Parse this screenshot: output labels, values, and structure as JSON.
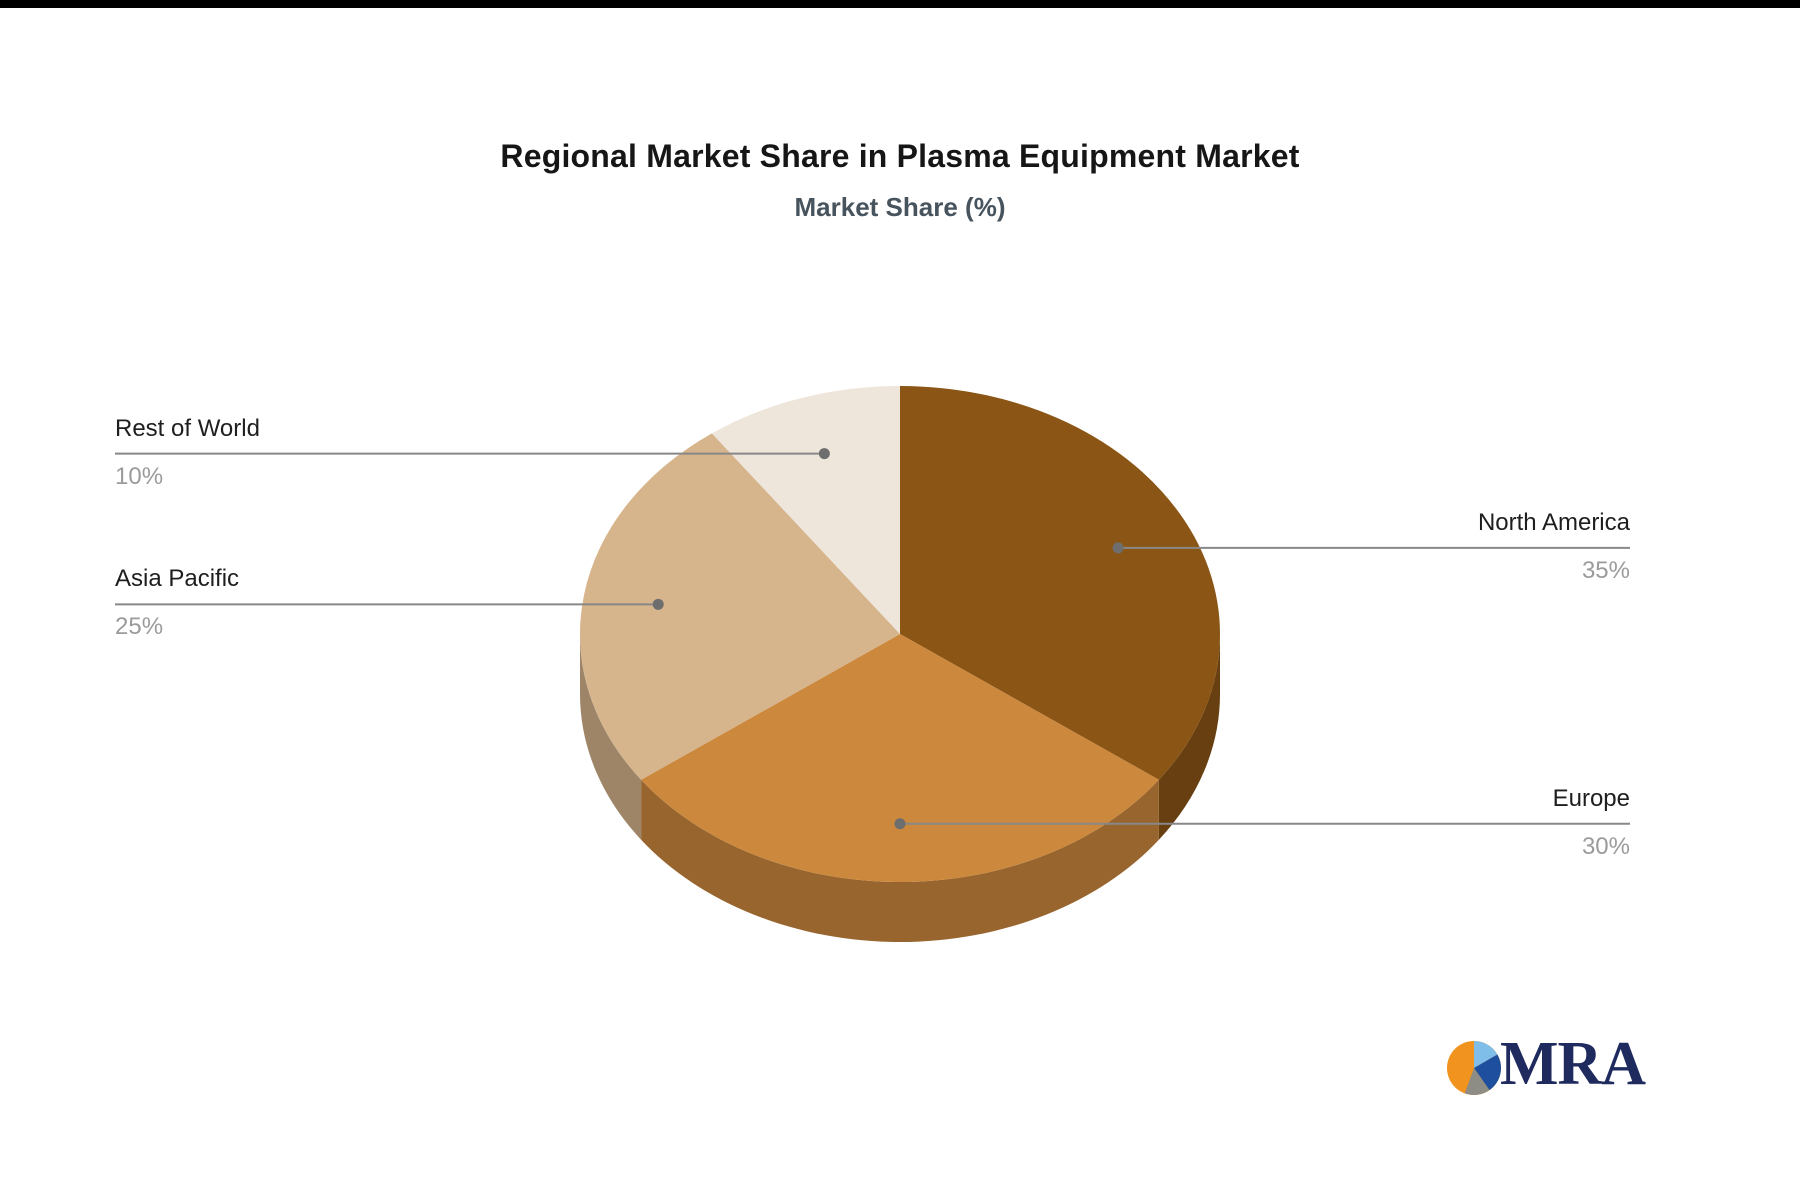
{
  "chart_data": {
    "type": "pie",
    "title": "Regional Market Share in Plasma Equipment Market",
    "subtitle": "Market Share (%)",
    "labels": [
      "North America",
      "Europe",
      "Asia Pacific",
      "Rest of World"
    ],
    "values": [
      35,
      30,
      25,
      10
    ],
    "value_labels": [
      "35%",
      "30%",
      "25%",
      "10%"
    ],
    "colors": [
      "#8b5515",
      "#cc883d",
      "#d6b48c",
      "#eee5db"
    ],
    "start_angle_deg": 90,
    "direction": "clockwise",
    "style": "3d",
    "legend": "none",
    "label_layout": "leader-lines",
    "leader_line_color": "#888888",
    "percent_text_color": "#9b9b9b"
  },
  "logo": {
    "text": "MRA",
    "text_color": "#1f2a5e",
    "icon_colors": [
      "#f0941f",
      "#7fbee9",
      "#1d4f9e",
      "#8d8d85"
    ]
  }
}
